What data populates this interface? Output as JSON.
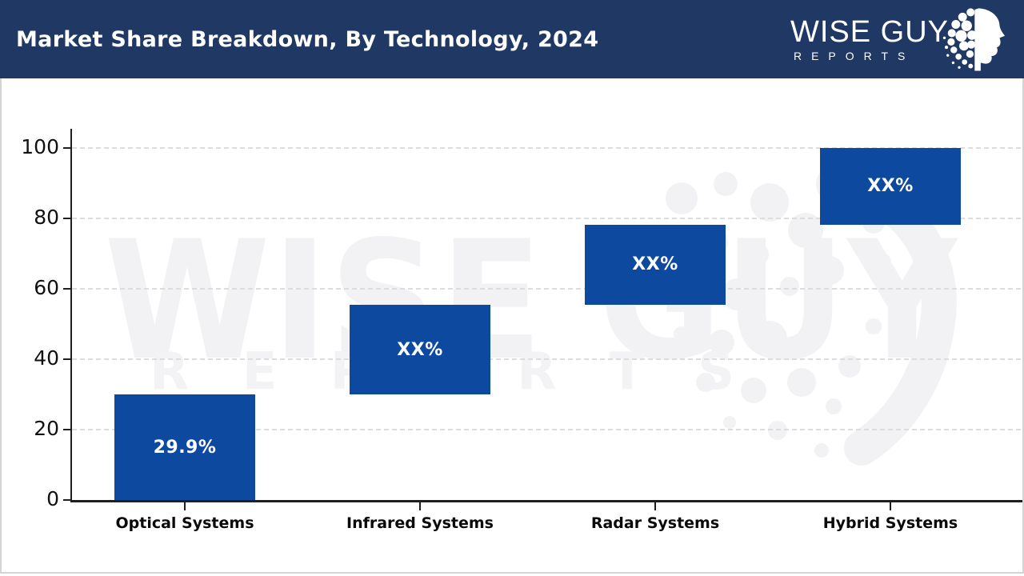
{
  "header": {
    "title": "Market Share Breakdown, By Technology, 2024",
    "brand": {
      "name": "WISE GUY",
      "subtitle": "REPORTS",
      "icon": "dotted-face-profile-icon"
    }
  },
  "watermark": {
    "line1": "WISE GUY",
    "line2": "R E P O R T S",
    "icon": "dotted-face-profile-watermark"
  },
  "colors": {
    "header_bg": "#1f3864",
    "bar": "#0d4a9f",
    "axis": "#1f1f1f",
    "gridline": "#dcdcdc",
    "watermark": "#f2f2f4",
    "bar_label": "#ffffff"
  },
  "chart_data": {
    "type": "bar",
    "subtype": "waterfall",
    "title": "Market Share Breakdown, By Technology, 2024",
    "categories": [
      "Optical Systems",
      "Infrared Systems",
      "Radar Systems",
      "Hybrid Systems"
    ],
    "segments": [
      {
        "start": 0,
        "end": 29.9,
        "label": "29.9%"
      },
      {
        "start": 29.9,
        "end": 55.5,
        "label": "XX%"
      },
      {
        "start": 55.5,
        "end": 78.2,
        "label": "XX%"
      },
      {
        "start": 78.2,
        "end": 100,
        "label": "XX%"
      }
    ],
    "yticks": [
      0,
      20,
      40,
      60,
      80,
      100
    ],
    "ylim": [
      0,
      105
    ],
    "xlabel": "",
    "ylabel": "",
    "grid": "horizontal-dashed",
    "legend": "none",
    "bar_color": "#0d4a9f",
    "label_color": "#ffffff"
  }
}
